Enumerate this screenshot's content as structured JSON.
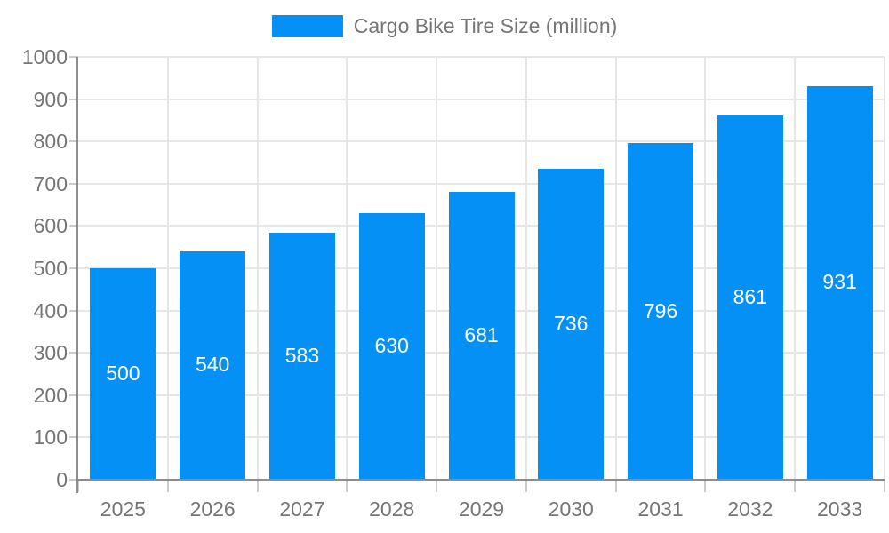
{
  "legend": {
    "label": "Cargo Bike Tire Size (million)"
  },
  "chart_data": {
    "type": "bar",
    "title": "Cargo Bike Tire Size (million)",
    "categories": [
      "2025",
      "2026",
      "2027",
      "2028",
      "2029",
      "2030",
      "2031",
      "2032",
      "2033"
    ],
    "values": [
      500,
      540,
      583,
      630,
      681,
      736,
      796,
      861,
      931
    ],
    "xlabel": "",
    "ylabel": "",
    "ylim": [
      0,
      1000
    ],
    "ytick_step": 100,
    "ytick_labels": [
      "0",
      "100",
      "200",
      "300",
      "400",
      "500",
      "600",
      "700",
      "800",
      "900",
      "1000"
    ],
    "grid": true,
    "legend_position": "top-center",
    "value_label_position": "inside-center",
    "colors": {
      "bar": "#0590f5",
      "value_label": "#ffffff",
      "axis": "#8d8d8d",
      "gridline": "#e6e6e6",
      "tick": "#cccccc",
      "tick_label": "#757575",
      "background": "#ffffff"
    }
  }
}
